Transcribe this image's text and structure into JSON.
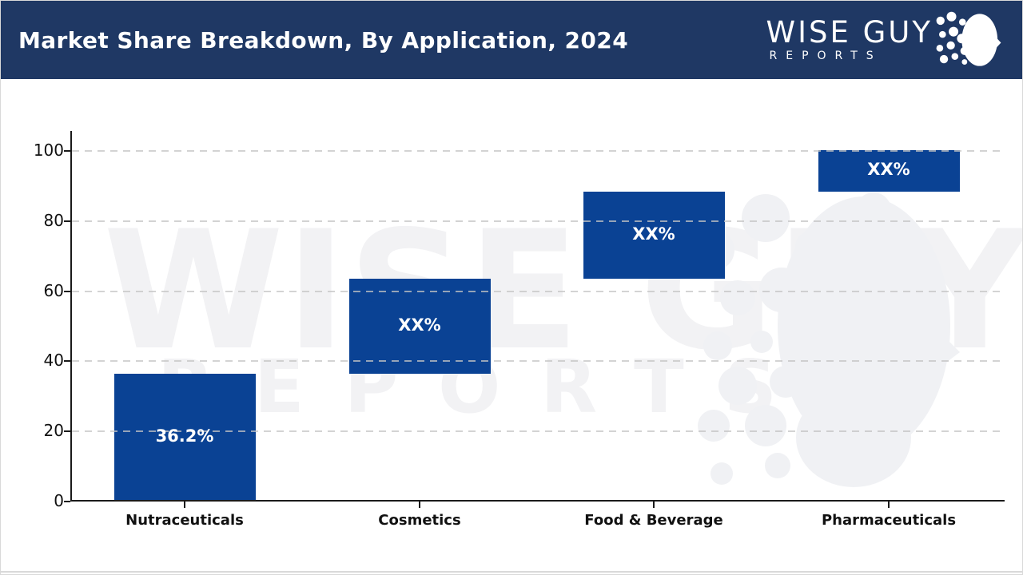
{
  "header": {
    "title": "Market Share Breakdown, By Application, 2024",
    "logo": {
      "name": "WISE GUY",
      "subtitle": "REPORTS"
    }
  },
  "watermark": {
    "name": "WISE GUY",
    "subtitle": "REPORTS"
  },
  "colors": {
    "header_bg": "#1f3864",
    "bar": "#0a4294",
    "bar_label_text": "#ffffff",
    "axis": "#1a1a1a",
    "gridline": "#c4c4c4",
    "watermark": "#f2f2f4",
    "frame_border": "#d9d9d9"
  },
  "chart_data": {
    "type": "bar",
    "subtype": "waterfall",
    "title": "Market Share Breakdown, By Application, 2024",
    "categories": [
      "Nutraceuticals",
      "Cosmetics",
      "Food & Beverage",
      "Pharmaceuticals"
    ],
    "segments": [
      {
        "category": "Nutraceuticals",
        "start": 0,
        "end": 36.2,
        "value": 36.2,
        "label": "36.2%"
      },
      {
        "category": "Cosmetics",
        "start": 36.2,
        "end": 63.4,
        "value": 27.2,
        "label": "XX%"
      },
      {
        "category": "Food & Beverage",
        "start": 63.4,
        "end": 88.2,
        "value": 24.8,
        "label": "XX%"
      },
      {
        "category": "Pharmaceuticals",
        "start": 88.2,
        "end": 100,
        "value": 11.8,
        "label": "XX%"
      }
    ],
    "yticks": [
      0,
      20,
      40,
      60,
      80,
      100
    ],
    "ylim": [
      0,
      105
    ],
    "xlabel": "",
    "ylabel": "",
    "grid": "dashed-horizontal",
    "legend": "none"
  }
}
